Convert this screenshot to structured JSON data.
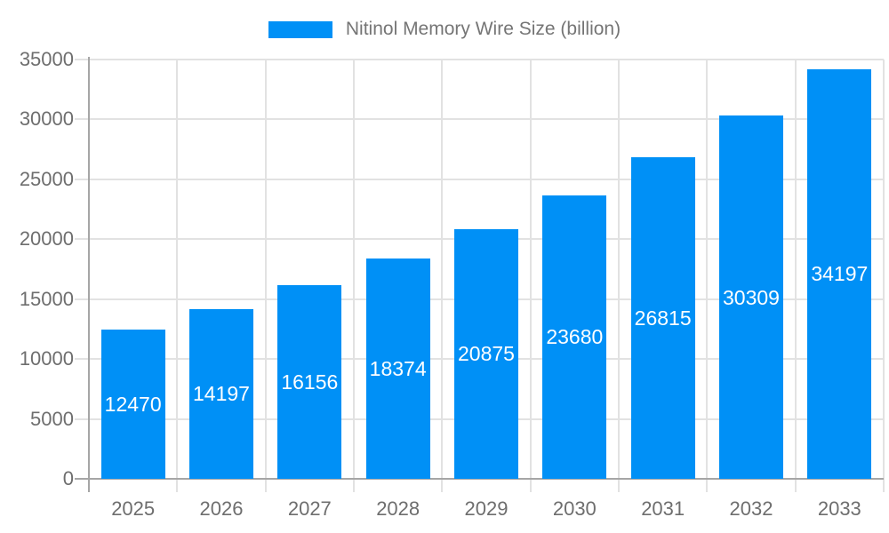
{
  "chart_data": {
    "type": "bar",
    "title": "Nitinol Memory Wire Size (billion)",
    "legend_label": "Nitinol Memory Wire Size (billion)",
    "legend_position": "top",
    "categories": [
      "2025",
      "2026",
      "2027",
      "2028",
      "2029",
      "2030",
      "2031",
      "2032",
      "2033"
    ],
    "series": [
      {
        "name": "Nitinol Memory Wire Size (billion)",
        "values": [
          12470,
          14197,
          16156,
          18374,
          20875,
          23680,
          26815,
          30309,
          34197
        ]
      }
    ],
    "xlabel": "",
    "ylabel": "",
    "ylim": [
      0,
      35000
    ],
    "yticks": [
      0,
      5000,
      10000,
      15000,
      20000,
      25000,
      30000,
      35000
    ],
    "grid": true,
    "bar_label_position": "center",
    "colors": {
      "bar": "#0090F6",
      "bar_label": "#ffffff",
      "grid": "#e2e2e2",
      "axis": "#a6a6a6",
      "tick_text": "#6e6e6e",
      "legend_text": "#757575",
      "background": "#ffffff"
    }
  }
}
